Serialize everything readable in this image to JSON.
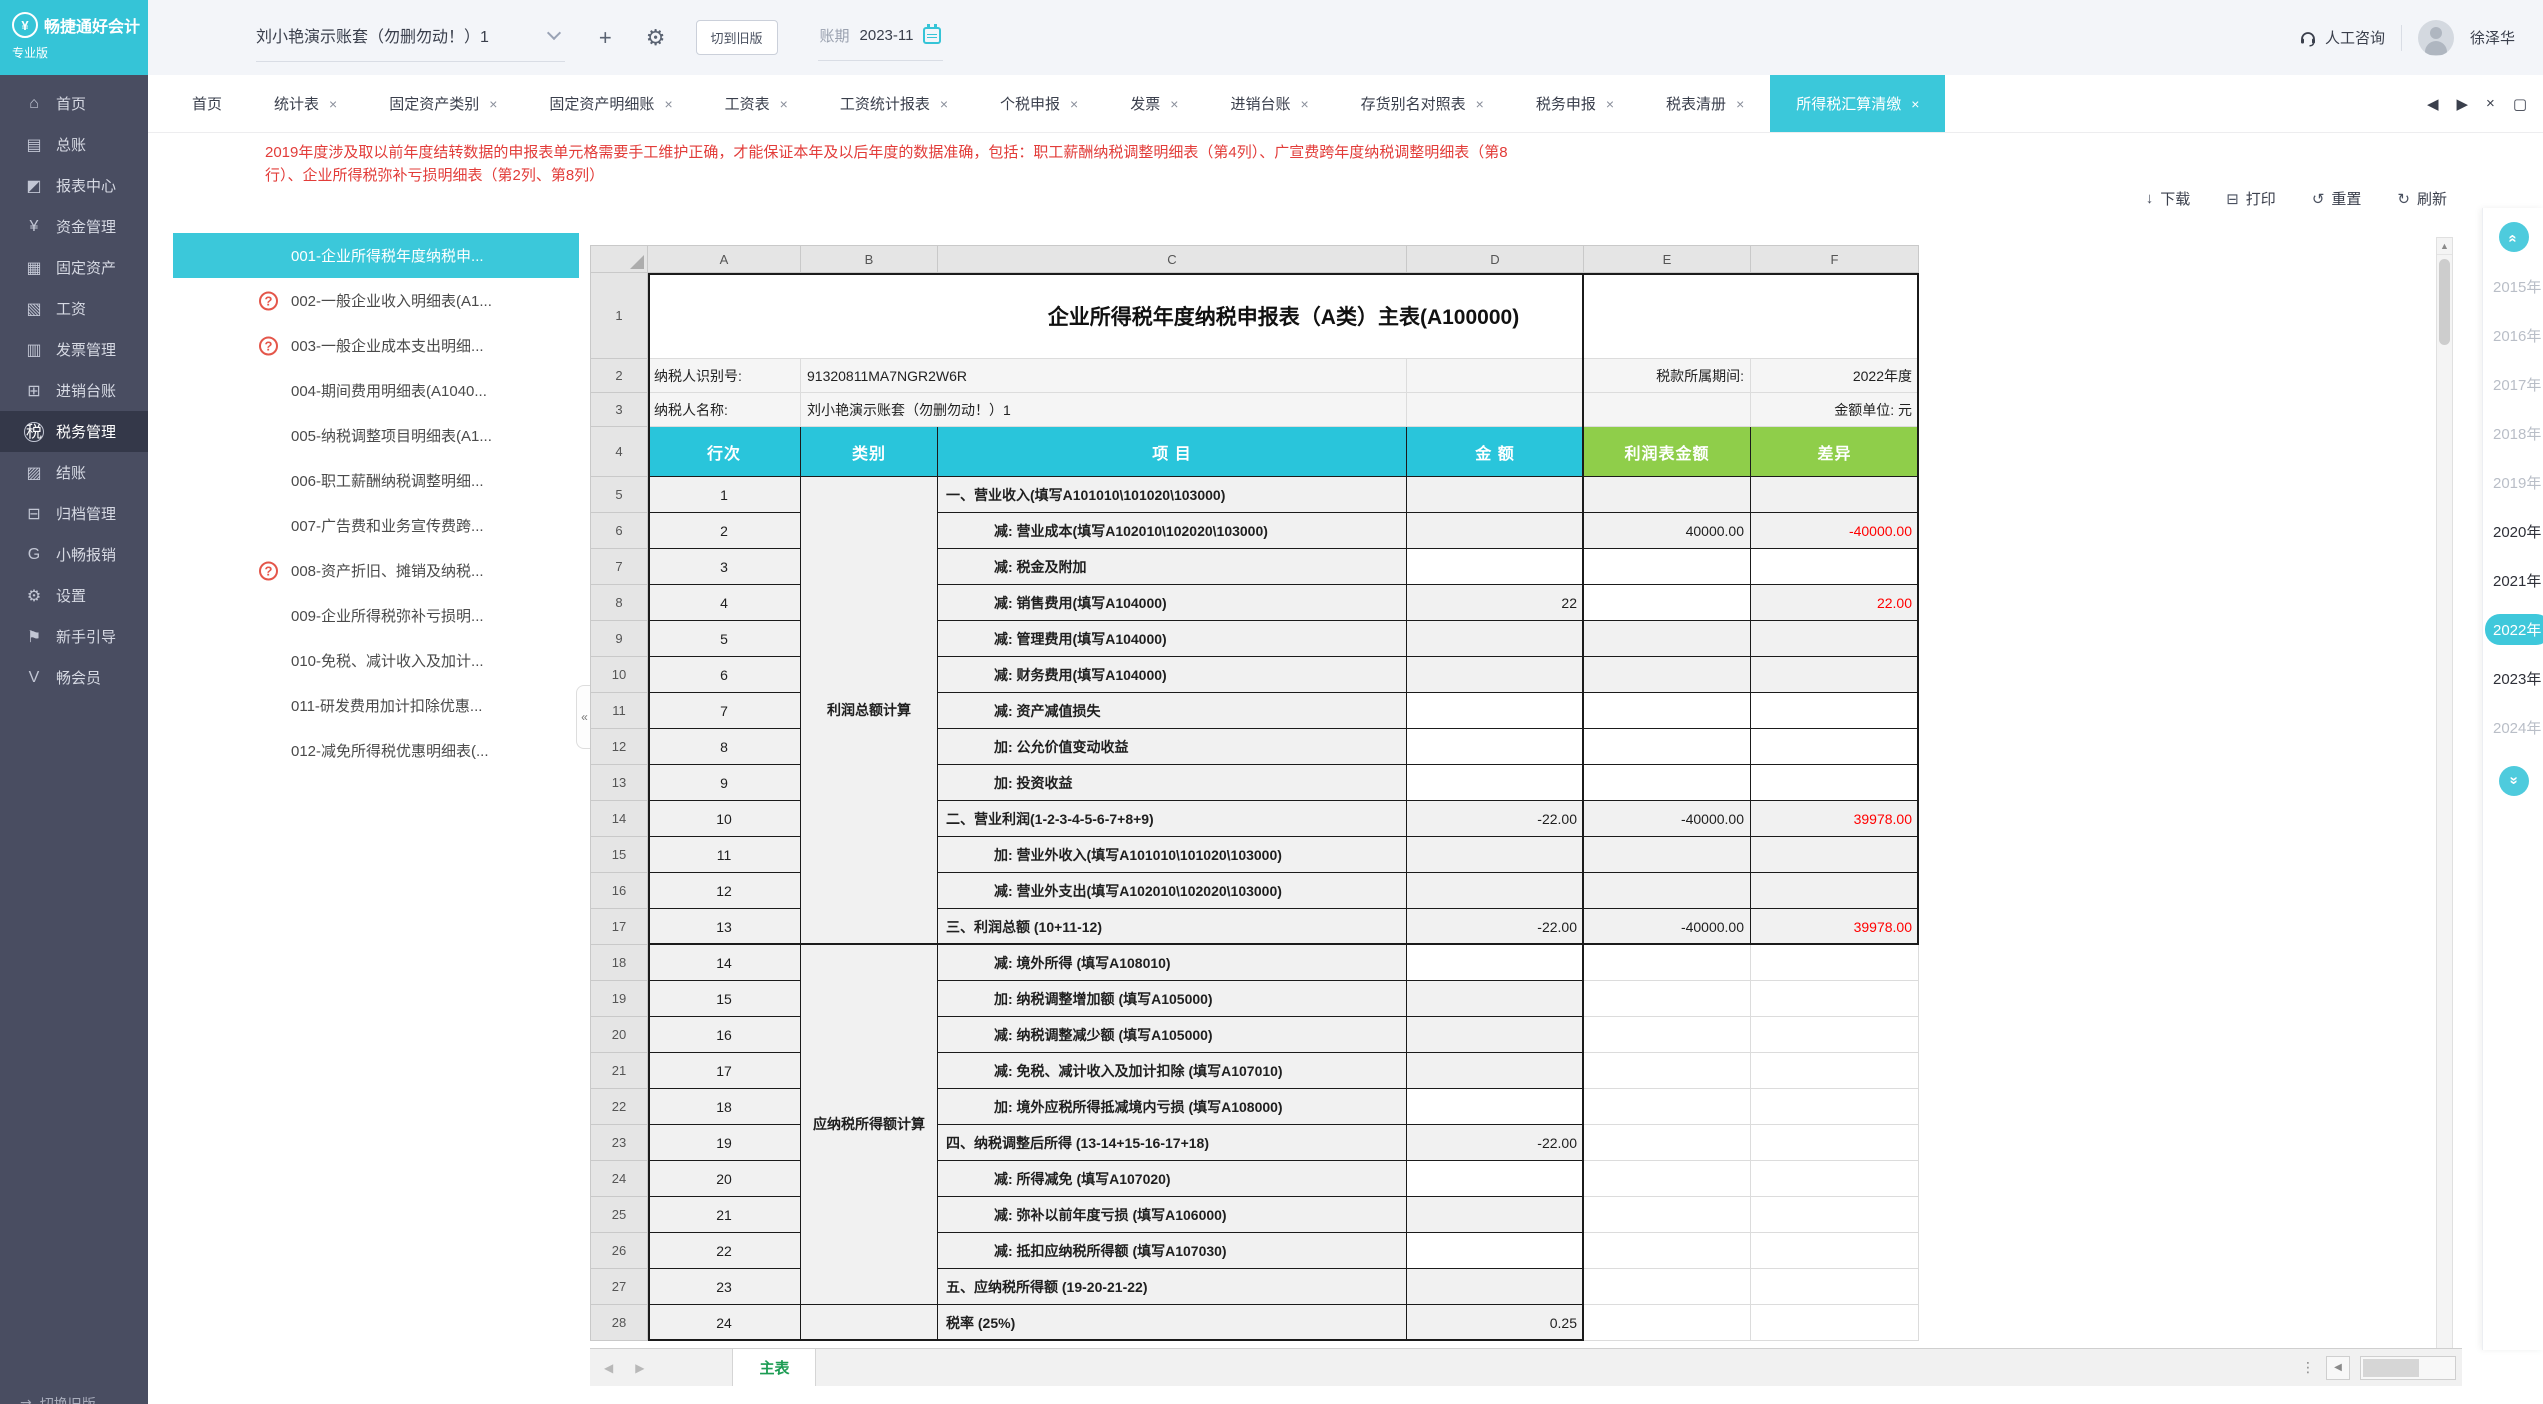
{
  "colors": {
    "brand_teal": "#35C4D7",
    "active_tab_teal": "#3BC8DA",
    "header_cell_teal": "#29C5DB",
    "header_cell_green": "#8FCE4A",
    "warning_red": "#E23C39",
    "negative_red": "#FF0000",
    "sidebar_bg": "#494D61"
  },
  "brand": {
    "name": "畅捷通好会计",
    "edition": "专业版"
  },
  "topbar": {
    "account": "刘小艳演示账套（勿删勿动！）1",
    "period_label": "账期",
    "period": "2023-11",
    "switch_old": "切到旧版",
    "support": "人工咨询",
    "user": "徐泽华"
  },
  "sidebar": {
    "items": [
      {
        "icon": "home-icon",
        "glyph": "⌂",
        "label": "首页",
        "active": false
      },
      {
        "icon": "ledger-icon",
        "glyph": "▤",
        "label": "总账",
        "active": false
      },
      {
        "icon": "report-center-icon",
        "glyph": "◩",
        "label": "报表中心",
        "active": false
      },
      {
        "icon": "funds-icon",
        "glyph": "¥",
        "label": "资金管理",
        "active": false
      },
      {
        "icon": "fixed-assets-icon",
        "glyph": "▦",
        "label": "固定资产",
        "active": false
      },
      {
        "icon": "salary-icon",
        "glyph": "▧",
        "label": "工资",
        "active": false
      },
      {
        "icon": "invoice-icon",
        "glyph": "▥",
        "label": "发票管理",
        "active": false
      },
      {
        "icon": "trade-ledger-icon",
        "glyph": "⊞",
        "label": "进销台账",
        "active": false
      },
      {
        "icon": "tax-icon",
        "glyph": "税",
        "label": "税务管理",
        "active": true
      },
      {
        "icon": "closing-icon",
        "glyph": "▨",
        "label": "结账",
        "active": false
      },
      {
        "icon": "archive-icon",
        "glyph": "⊟",
        "label": "归档管理",
        "active": false
      },
      {
        "icon": "reimburse-icon",
        "glyph": "G",
        "label": "小畅报销",
        "active": false
      },
      {
        "icon": "settings-icon",
        "glyph": "⚙",
        "label": "设置",
        "active": false
      },
      {
        "icon": "guide-icon",
        "glyph": "⚑",
        "label": "新手引导",
        "active": false
      },
      {
        "icon": "member-icon",
        "glyph": "V",
        "label": "畅会员",
        "active": false
      }
    ],
    "footer": "切换旧版"
  },
  "tabs": {
    "items": [
      {
        "label": "首页",
        "closable": false,
        "active": false
      },
      {
        "label": "统计表",
        "closable": true,
        "active": false
      },
      {
        "label": "固定资产类别",
        "closable": true,
        "active": false
      },
      {
        "label": "固定资产明细账",
        "closable": true,
        "active": false
      },
      {
        "label": "工资表",
        "closable": true,
        "active": false
      },
      {
        "label": "工资统计报表",
        "closable": true,
        "active": false
      },
      {
        "label": "个税申报",
        "closable": true,
        "active": false
      },
      {
        "label": "发票",
        "closable": true,
        "active": false
      },
      {
        "label": "进销台账",
        "closable": true,
        "active": false
      },
      {
        "label": "存货别名对照表",
        "closable": true,
        "active": false
      },
      {
        "label": "税务申报",
        "closable": true,
        "active": false
      },
      {
        "label": "税表清册",
        "closable": true,
        "active": false
      },
      {
        "label": "所得税汇算清缴",
        "closable": true,
        "active": true
      }
    ],
    "controls": {
      "prev": "◀",
      "next": "▶",
      "close_all": "×",
      "expand": "▢"
    }
  },
  "warning": {
    "text": "2019年度涉及取以前年度结转数据的申报表单元格需要手工维护正确，才能保证本年及以后年度的数据准确，包括：职工薪酬纳税调整明细表（第4列）、广宣费跨年度纳税调整明细表（第8行）、企业所得税弥补亏损明细表（第2列、第8列）"
  },
  "toolbar": {
    "download": "下载",
    "print": "打印",
    "reset": "重置",
    "refresh": "刷新"
  },
  "report_list": [
    {
      "label": "001-企业所得税年度纳税申...",
      "active": true,
      "help": false
    },
    {
      "label": "002-一般企业收入明细表(A1...",
      "active": false,
      "help": true
    },
    {
      "label": "003-一般企业成本支出明细...",
      "active": false,
      "help": true
    },
    {
      "label": "004-期间费用明细表(A1040...",
      "active": false,
      "help": false
    },
    {
      "label": "005-纳税调整项目明细表(A1...",
      "active": false,
      "help": false
    },
    {
      "label": "006-职工薪酬纳税调整明细...",
      "active": false,
      "help": false
    },
    {
      "label": "007-广告费和业务宣传费跨...",
      "active": false,
      "help": false
    },
    {
      "label": "008-资产折旧、摊销及纳税...",
      "active": false,
      "help": true
    },
    {
      "label": "009-企业所得税弥补亏损明...",
      "active": false,
      "help": false
    },
    {
      "label": "010-免税、减计收入及加计...",
      "active": false,
      "help": false
    },
    {
      "label": "011-研发费用加计扣除优惠...",
      "active": false,
      "help": false
    },
    {
      "label": "012-减免所得税优惠明细表(...",
      "active": false,
      "help": false
    }
  ],
  "sheet": {
    "columns": [
      "A",
      "B",
      "C",
      "D",
      "E",
      "F"
    ],
    "title": "企业所得税年度纳税申报表（A类）主表(A100000)",
    "info": {
      "taxpayer_id_label": "纳税人识别号:",
      "taxpayer_id": "91320811MA7NGR2W6R",
      "tax_period_label": "税款所属期间:",
      "tax_period": "2022年度",
      "taxpayer_name_label": "纳税人名称:",
      "taxpayer_name": "刘小艳演示账套（勿删勿动！）1",
      "unit": "金额单位: 元"
    },
    "header": {
      "line_no": "行次",
      "category": "类别",
      "item": "项  目",
      "amount": "金  额",
      "profit_amount": "利润表金额",
      "difference": "差异"
    },
    "groups": [
      {
        "label": "利润总额计算",
        "from": 5,
        "to": 17
      },
      {
        "label": "应纳税所得额计算",
        "from": 18,
        "to": 27
      }
    ],
    "rows": [
      {
        "n": 5,
        "line": "1",
        "item": "一、营业收入(填写A101010\\101020\\103000)",
        "top": true
      },
      {
        "n": 6,
        "line": "2",
        "item": "减: 营业成本(填写A102010\\102020\\103000)",
        "e": "40000.00",
        "f": "-40000.00",
        "fred": true
      },
      {
        "n": 7,
        "line": "3",
        "item": "减: 税金及附加",
        "dw": true,
        "ew": true,
        "fw": true
      },
      {
        "n": 8,
        "line": "4",
        "item": "减: 销售费用(填写A104000)",
        "d": "22",
        "ew": true,
        "f": "22.00",
        "fred": true
      },
      {
        "n": 9,
        "line": "5",
        "item": "减: 管理费用(填写A104000)"
      },
      {
        "n": 10,
        "line": "6",
        "item": "减: 财务费用(填写A104000)"
      },
      {
        "n": 11,
        "line": "7",
        "item": "减: 资产减值损失",
        "dw": true,
        "ew": true,
        "fw": true
      },
      {
        "n": 12,
        "line": "8",
        "item": "加: 公允价值变动收益",
        "dw": true,
        "ew": true,
        "fw": true
      },
      {
        "n": 13,
        "line": "9",
        "item": "加: 投资收益",
        "dw": true,
        "ew": true,
        "fw": true
      },
      {
        "n": 14,
        "line": "10",
        "item": "二、营业利润(1-2-3-4-5-6-7+8+9)",
        "top": true,
        "d": "-22.00",
        "e": "-40000.00",
        "f": "39978.00",
        "fred": true
      },
      {
        "n": 15,
        "line": "11",
        "item": "加: 营业外收入(填写A101010\\101020\\103000)"
      },
      {
        "n": 16,
        "line": "12",
        "item": "减: 营业外支出(填写A102010\\102020\\103000)"
      },
      {
        "n": 17,
        "line": "13",
        "item": "三、利润总额 (10+11-12)",
        "top": true,
        "d": "-22.00",
        "e": "-40000.00",
        "f": "39978.00",
        "fred": true
      },
      {
        "n": 18,
        "line": "14",
        "item": "减: 境外所得 (填写A108010)",
        "dw": true
      },
      {
        "n": 19,
        "line": "15",
        "item": "加: 纳税调整增加额 (填写A105000)"
      },
      {
        "n": 20,
        "line": "16",
        "item": "减: 纳税调整减少额 (填写A105000)"
      },
      {
        "n": 21,
        "line": "17",
        "item": "减: 免税、减计收入及加计扣除 (填写A107010)"
      },
      {
        "n": 22,
        "line": "18",
        "item": "加: 境外应税所得抵减境内亏损 (填写A108000)",
        "dw": true
      },
      {
        "n": 23,
        "line": "19",
        "item": "四、纳税调整后所得 (13-14+15-16-17+18)",
        "top": true,
        "d": "-22.00"
      },
      {
        "n": 24,
        "line": "20",
        "item": "减: 所得减免 (填写A107020)",
        "dw": true
      },
      {
        "n": 25,
        "line": "21",
        "item": "减: 弥补以前年度亏损 (填写A106000)"
      },
      {
        "n": 26,
        "line": "22",
        "item": "减: 抵扣应纳税所得额 (填写A107030)",
        "dw": true
      },
      {
        "n": 27,
        "line": "23",
        "item": "五、应纳税所得额 (19-20-21-22)",
        "top": true
      },
      {
        "n": 28,
        "line": "24",
        "item": "税率 (25%)",
        "top": true,
        "d": "0.25"
      }
    ],
    "footer": {
      "sheet_tab": "主表"
    }
  },
  "years": {
    "items": [
      {
        "label": "2015年",
        "state": "disabled"
      },
      {
        "label": "2016年",
        "state": "disabled"
      },
      {
        "label": "2017年",
        "state": "disabled"
      },
      {
        "label": "2018年",
        "state": "disabled"
      },
      {
        "label": "2019年",
        "state": "disabled"
      },
      {
        "label": "2020年",
        "state": "normal"
      },
      {
        "label": "2021年",
        "state": "normal"
      },
      {
        "label": "2022年",
        "state": "active"
      },
      {
        "label": "2023年",
        "state": "normal"
      },
      {
        "label": "2024年",
        "state": "disabled"
      }
    ]
  }
}
